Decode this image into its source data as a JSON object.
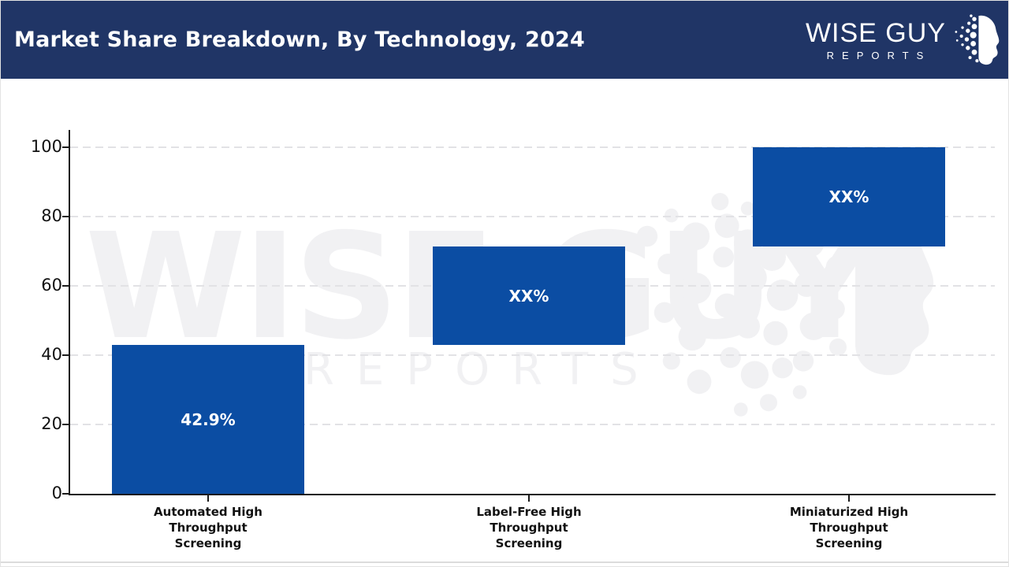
{
  "header": {
    "title": "Market Share Breakdown, By Technology, 2024",
    "logo": {
      "brand": "WISE GUY",
      "sub": "REPORTS"
    }
  },
  "watermark": {
    "brand": "WISE GUY",
    "sub": "REPORTS"
  },
  "chart_data": {
    "type": "bar",
    "subtype": "waterfall-floating-segments",
    "title": "Market Share Breakdown, By Technology, 2024",
    "categories": [
      "Automated High\nThroughput\nScreening",
      "Label-Free High\nThroughput\nScreening",
      "Miniaturized High\nThroughput\nScreening"
    ],
    "segments": [
      {
        "category": "Automated High\nThroughput\nScreening",
        "start": 0,
        "end": 42.9,
        "label": "42.9%"
      },
      {
        "category": "Label-Free High\nThroughput\nScreening",
        "start": 42.9,
        "end": 71.4,
        "label": "XX%"
      },
      {
        "category": "Miniaturized High\nThroughput\nScreening",
        "start": 71.4,
        "end": 100,
        "label": "XX%"
      }
    ],
    "ylim": [
      0,
      100
    ],
    "yticks": [
      0,
      20,
      40,
      60,
      80,
      100
    ],
    "xlabel": "",
    "ylabel": "",
    "grid": {
      "horizontal": true,
      "style": "dashed",
      "color": "#e2e2e5"
    },
    "legend": null,
    "bar_color": "#0b4da3",
    "bar_label_color": "#ffffff",
    "axis_color": "#1a1a1a"
  },
  "colors": {
    "header_bg": "#203566",
    "bar": "#0b4da3",
    "watermark": "#f1f1f3",
    "grid": "#e2e2e5"
  }
}
